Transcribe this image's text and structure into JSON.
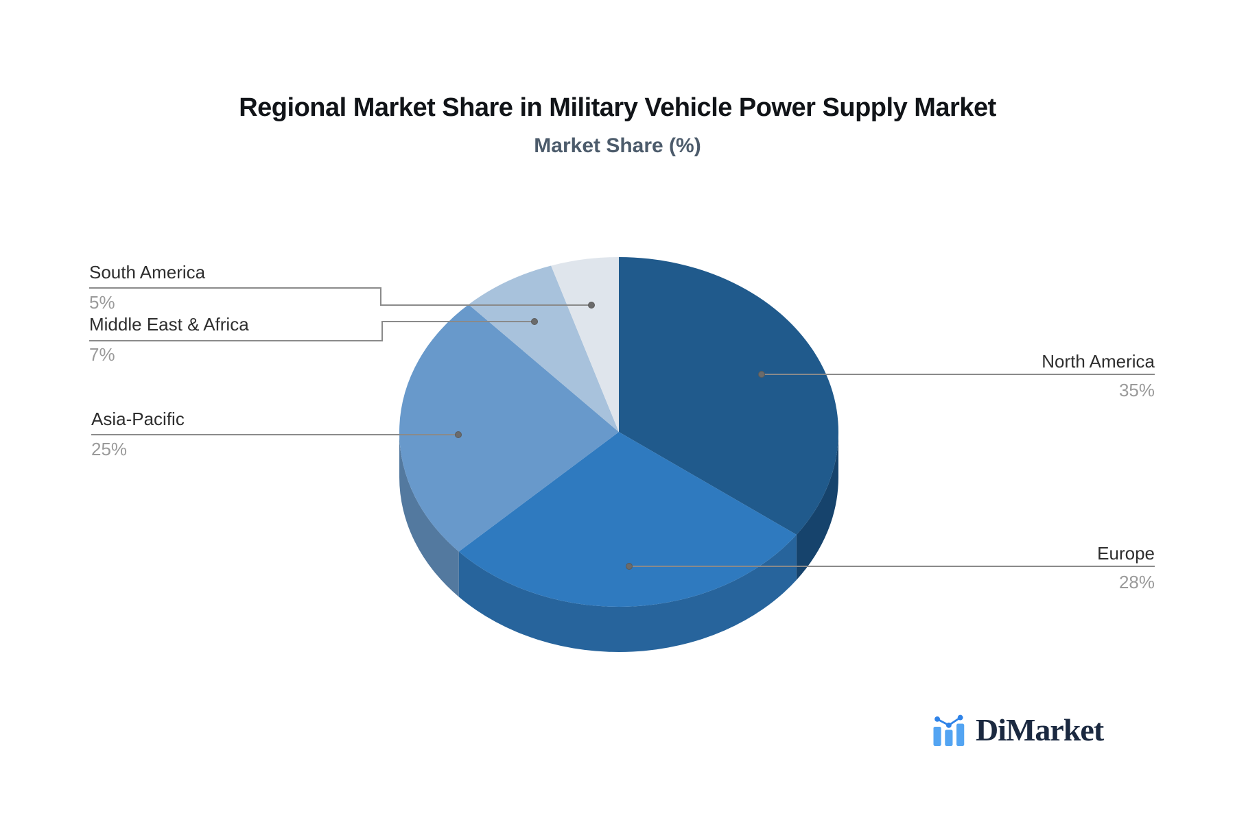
{
  "chart_data": {
    "type": "pie",
    "title": "Regional Market Share in Military Vehicle Power Supply Market",
    "subtitle": "Market Share (%)",
    "effect": "3d",
    "start_angle_deg": 0,
    "direction": "clockwise",
    "legend_position": "none",
    "label_style": "callout",
    "labels": [
      "North America",
      "Europe",
      "Asia-Pacific",
      "Middle East & Africa",
      "South America"
    ],
    "values": [
      35,
      28,
      25,
      7,
      5
    ],
    "value_labels": [
      "35%",
      "28%",
      "25%",
      "7%",
      "5%"
    ],
    "colors": [
      "#205A8C",
      "#2F7ABF",
      "#6899CB",
      "#A8C2DC",
      "#DFE5EC"
    ],
    "side_colors": [
      "#16436C",
      "#27649C",
      "#53799F",
      "#8FB0CF",
      "#C9D4E2"
    ],
    "line_color": "#8a8a8a",
    "dot_color": "#6b6b6b",
    "label_color": "#2e2e2e",
    "value_color": "#9a9a9a",
    "title_color": "#111418",
    "subtitle_color": "#4c5b6b"
  },
  "branding": {
    "logo_text": "DiMarket",
    "icon": "bar-chart-icon",
    "icon_bar_color": "#53A4F2",
    "icon_line_color": "#2F83E8",
    "text_color": "#1b2940"
  }
}
